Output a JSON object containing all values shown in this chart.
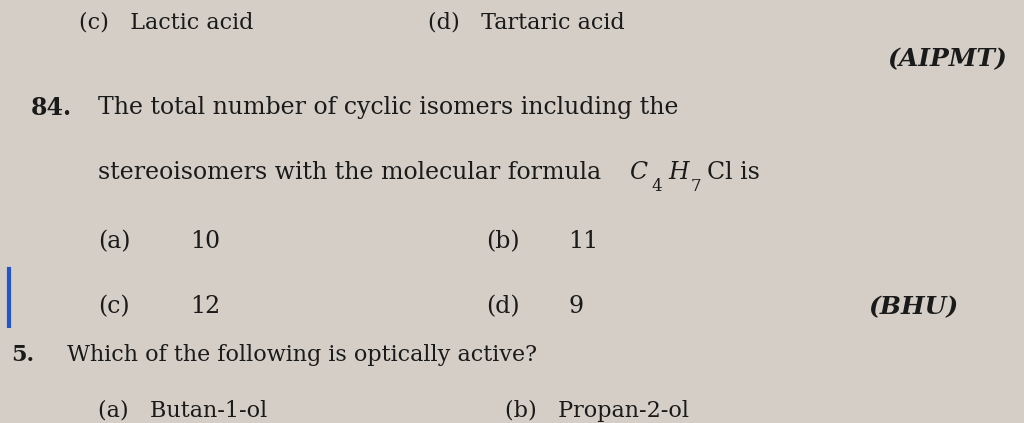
{
  "bg_color": "#d4cec6",
  "text_color": "#1a1a1a",
  "font_size_main": 17,
  "font_size_options": 17,
  "font_size_source": 18,
  "font_size_prev": 16,
  "prev_c": "(c)   Lactic acid",
  "prev_d": "(d)   Tartaric acid",
  "prev_source": "(AIPMT)",
  "q_num": "84.",
  "line1": "The total number of cyclic isomers including the",
  "line2_pre": "stereoisomers with the molecular formula ",
  "formula_C": "C",
  "formula_4": "4",
  "formula_H": "H",
  "formula_7": "7",
  "formula_Cl": "Cl is",
  "opt_a_label": "(a)",
  "opt_a_val": "10",
  "opt_b_label": "(b)",
  "opt_b_val": "11",
  "opt_c_label": "(c)",
  "opt_c_val": "12",
  "opt_d_label": "(d)",
  "opt_d_val": "9",
  "source_tag": "(BHU)",
  "next_q_num": "5.",
  "next_q_text": " Which of the following is optically active?",
  "next_a_label": "(a)   Butan-1-ol",
  "next_b_label": "(b)   Propan-2-ol",
  "blue_line_color": "#2255cc"
}
